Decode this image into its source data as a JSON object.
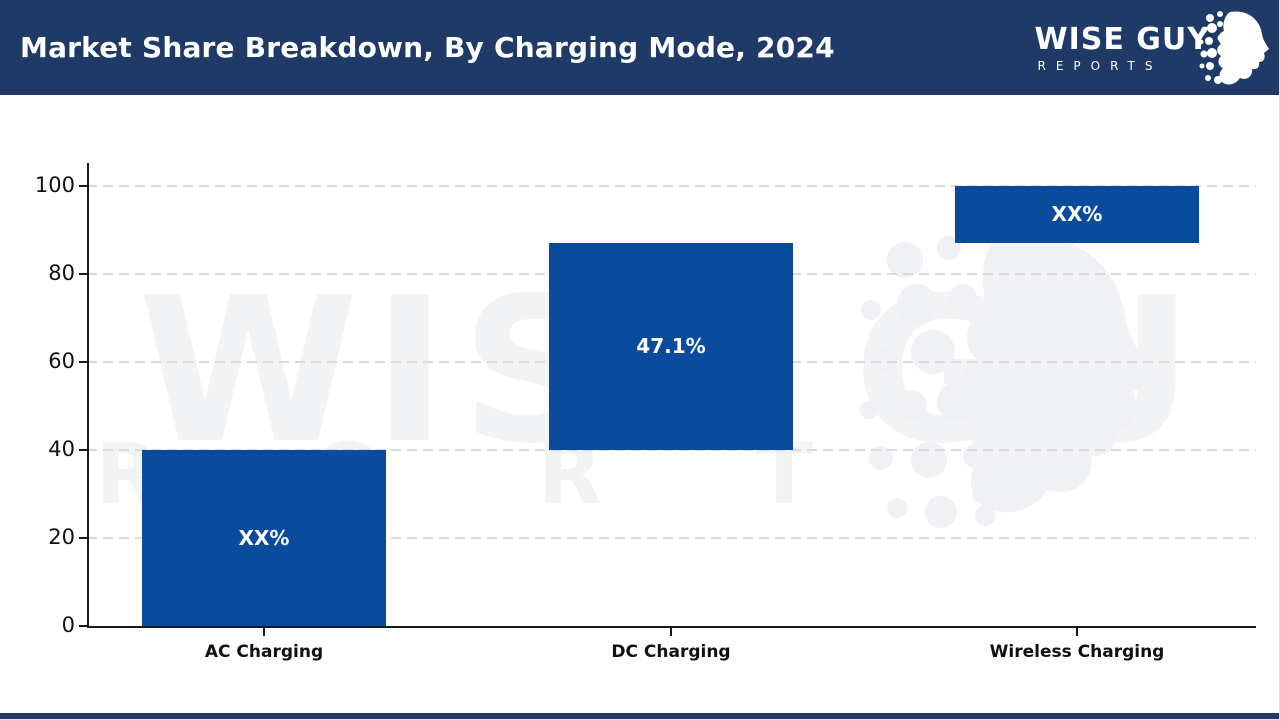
{
  "header": {
    "title": "Market Share Breakdown, By Charging Mode, 2024",
    "logo": {
      "line1": "WISE GUY",
      "line2": "REPORTS"
    }
  },
  "watermark": {
    "line1": "WISE GU",
    "line2": "R O R T S"
  },
  "colors": {
    "header_bg": "#1F3A66",
    "bar": "#0B4B9E",
    "grid": "#DBDBDB",
    "axis": "#1A1A1A",
    "tick_text": "#111111",
    "bar_label_text": "#FFFFFF",
    "watermark": "#F2F3F5"
  },
  "chart_data": {
    "type": "bar",
    "subtype": "waterfall",
    "title": "Market Share Breakdown, By Charging Mode, 2024",
    "categories": [
      "AC Charging",
      "DC Charging",
      "Wireless Charging"
    ],
    "bars": [
      {
        "category": "AC Charging",
        "start": 0,
        "end": 40,
        "label": "XX%"
      },
      {
        "category": "DC Charging",
        "start": 40,
        "end": 87.1,
        "label": "47.1%"
      },
      {
        "category": "Wireless Charging",
        "start": 87.1,
        "end": 100,
        "label": "XX%"
      }
    ],
    "ylim": [
      0,
      105
    ],
    "yticks": [
      0,
      20,
      40,
      60,
      80,
      100
    ],
    "grid": "dashed-horizontal",
    "legend": "none",
    "xlabel": "",
    "ylabel": ""
  }
}
